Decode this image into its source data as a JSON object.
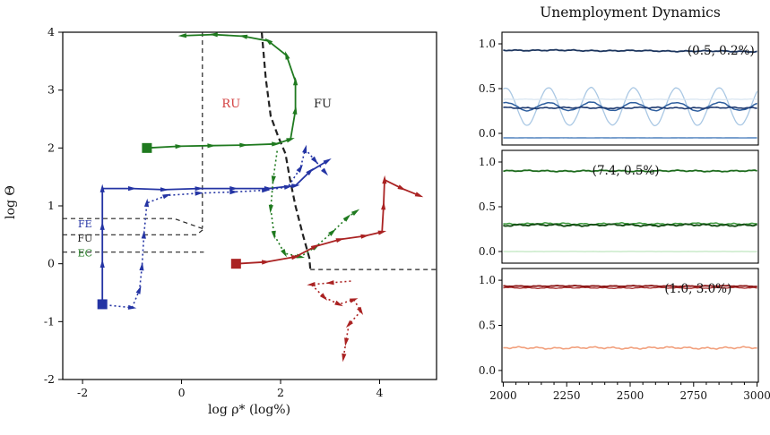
{
  "chart_data": [
    {
      "type": "scatter",
      "kind": "phase-diagram",
      "xlabel": "log ρ* (log%)",
      "ylabel": "log Θ",
      "xlim": [
        -2.4,
        5.15
      ],
      "ylim": [
        -2,
        4
      ],
      "xticks": [
        -2,
        0,
        2,
        4
      ],
      "yticks": [
        -2,
        -1,
        0,
        1,
        2,
        3,
        4
      ],
      "region_labels": [
        {
          "text": "RU",
          "x": 1.0,
          "y": 2.7,
          "color": "#d23a3a"
        },
        {
          "text": "FU",
          "x": 2.85,
          "y": 2.7,
          "color": "#222222"
        }
      ],
      "zone_labels": [
        {
          "text": "FE",
          "x": -1.95,
          "y": 0.63,
          "color": "#2434a4"
        },
        {
          "text": "FU",
          "x": -1.95,
          "y": 0.38,
          "color": "#222222"
        },
        {
          "text": "EC",
          "x": -1.95,
          "y": 0.13,
          "color": "#1f7a1f"
        }
      ],
      "boundaries": [
        {
          "points": [
            [
              1.62,
              4.0
            ],
            [
              1.7,
              3.2
            ],
            [
              1.8,
              2.55
            ],
            [
              1.95,
              2.2
            ],
            [
              2.1,
              1.9
            ],
            [
              2.18,
              1.5
            ],
            [
              2.3,
              1.0
            ],
            [
              2.45,
              0.5
            ],
            [
              2.58,
              0.1
            ],
            [
              2.6,
              -0.1
            ]
          ],
          "width": 2.2,
          "dash": "7 4"
        },
        {
          "points": [
            [
              2.6,
              -0.1
            ],
            [
              5.15,
              -0.1
            ]
          ],
          "width": 1.2,
          "dash": "5 4"
        },
        {
          "points": [
            [
              0.42,
              4.0
            ],
            [
              0.42,
              0.62
            ]
          ],
          "width": 1.2,
          "dash": "5 4"
        },
        {
          "points": [
            [
              -2.4,
              0.78
            ],
            [
              -0.15,
              0.78
            ],
            [
              0.45,
              0.6
            ]
          ],
          "width": 1.2,
          "dash": "5 4"
        },
        {
          "points": [
            [
              -2.4,
              0.5
            ],
            [
              0.3,
              0.5
            ],
            [
              0.45,
              0.6
            ]
          ],
          "width": 1.2,
          "dash": "5 4"
        },
        {
          "points": [
            [
              -2.4,
              0.2
            ],
            [
              0.45,
              0.2
            ]
          ],
          "width": 1.2,
          "dash": "5 4"
        }
      ],
      "trajectories": [
        {
          "name": "blue-solid",
          "color": "#2434a4",
          "style": "solid",
          "width": 1.8,
          "start_square": true,
          "points": [
            [
              -1.6,
              -0.7
            ],
            [
              -1.6,
              0.0
            ],
            [
              -1.6,
              0.65
            ],
            [
              -1.6,
              1.3
            ],
            [
              -1.0,
              1.3
            ],
            [
              -0.35,
              1.28
            ],
            [
              0.35,
              1.3
            ],
            [
              1.05,
              1.3
            ],
            [
              1.75,
              1.3
            ],
            [
              2.3,
              1.35
            ],
            [
              2.6,
              1.6
            ],
            [
              2.95,
              1.78
            ]
          ]
        },
        {
          "name": "blue-dotted",
          "color": "#2434a4",
          "style": "dotted",
          "width": 1.6,
          "start_square": false,
          "points": [
            [
              -1.45,
              -0.72
            ],
            [
              -1.0,
              -0.76
            ],
            [
              -0.85,
              -0.45
            ],
            [
              -0.8,
              -0.05
            ],
            [
              -0.76,
              0.5
            ],
            [
              -0.7,
              1.05
            ],
            [
              -0.3,
              1.18
            ],
            [
              0.35,
              1.22
            ],
            [
              1.05,
              1.24
            ],
            [
              1.7,
              1.27
            ],
            [
              2.15,
              1.33
            ],
            [
              2.4,
              1.65
            ],
            [
              2.5,
              1.98
            ],
            [
              2.7,
              1.78
            ],
            [
              2.9,
              1.58
            ]
          ]
        },
        {
          "name": "green-solid",
          "color": "#1f7a1f",
          "style": "solid",
          "width": 1.8,
          "start_square": true,
          "points": [
            [
              -0.7,
              2.0
            ],
            [
              -0.05,
              2.03
            ],
            [
              0.6,
              2.04
            ],
            [
              1.25,
              2.05
            ],
            [
              1.9,
              2.07
            ],
            [
              2.2,
              2.15
            ],
            [
              2.3,
              2.65
            ],
            [
              2.3,
              3.15
            ],
            [
              2.12,
              3.6
            ],
            [
              1.75,
              3.85
            ],
            [
              1.25,
              3.93
            ],
            [
              0.65,
              3.96
            ],
            [
              0.02,
              3.94
            ]
          ]
        },
        {
          "name": "green-dotted",
          "color": "#1f7a1f",
          "style": "dotted",
          "width": 1.6,
          "start_square": false,
          "points": [
            [
              1.93,
              1.95
            ],
            [
              1.85,
              1.45
            ],
            [
              1.8,
              0.95
            ],
            [
              1.87,
              0.5
            ],
            [
              2.08,
              0.18
            ],
            [
              2.4,
              0.12
            ],
            [
              2.72,
              0.3
            ],
            [
              3.05,
              0.55
            ],
            [
              3.35,
              0.8
            ],
            [
              3.52,
              0.9
            ]
          ]
        },
        {
          "name": "red-solid",
          "color": "#aa2222",
          "style": "solid",
          "width": 1.8,
          "start_square": true,
          "points": [
            [
              1.1,
              0.0
            ],
            [
              1.7,
              0.03
            ],
            [
              2.3,
              0.12
            ],
            [
              2.7,
              0.3
            ],
            [
              3.2,
              0.42
            ],
            [
              3.7,
              0.48
            ],
            [
              4.05,
              0.55
            ],
            [
              4.08,
              1.0
            ],
            [
              4.1,
              1.45
            ],
            [
              4.45,
              1.3
            ],
            [
              4.8,
              1.18
            ]
          ]
        },
        {
          "name": "red-dotted",
          "color": "#aa2222",
          "style": "dotted",
          "width": 1.6,
          "start_square": false,
          "points": [
            [
              3.42,
              -0.3
            ],
            [
              3.0,
              -0.33
            ],
            [
              2.62,
              -0.36
            ],
            [
              2.88,
              -0.58
            ],
            [
              3.18,
              -0.7
            ],
            [
              3.48,
              -0.62
            ],
            [
              3.62,
              -0.82
            ],
            [
              3.38,
              -1.05
            ],
            [
              3.32,
              -1.35
            ],
            [
              3.27,
              -1.62
            ]
          ]
        }
      ]
    },
    {
      "type": "line",
      "kind": "dynamics",
      "title": "Unemployment Dynamics",
      "x_range": [
        2000,
        3000
      ],
      "xticks": [
        2000,
        2250,
        2500,
        2750,
        3000
      ],
      "yticks": [
        0.0,
        0.5,
        1.0
      ],
      "ylim": [
        -0.13,
        1.13
      ],
      "panels": [
        {
          "label": "(0.5, 0.2%)",
          "label_x": 2990,
          "label_y": 0.88,
          "series": [
            {
              "type": "sine",
              "mean": 0.3,
              "amp": 0.21,
              "period": 168,
              "phase": 1.2,
              "noise": 0.005,
              "color": "#aac8e4",
              "width": 1.3
            },
            {
              "type": "flat",
              "mean": 0.38,
              "noise": 0.003,
              "color": "#d6e4f0",
              "width": 1.2
            },
            {
              "type": "sine",
              "mean": 0.3,
              "amp": 0.045,
              "period": 168,
              "phase": 1.2,
              "noise": 0.006,
              "color": "#2e5e9e",
              "width": 1.5
            },
            {
              "type": "flat",
              "mean": 0.285,
              "noise": 0.008,
              "color": "#1f3a70",
              "width": 1.6
            },
            {
              "type": "flat",
              "mean": 0.93,
              "drift": -0.015,
              "noise": 0.007,
              "color": "#1c355e",
              "width": 1.8
            },
            {
              "type": "flat",
              "mean": -0.05,
              "noise": 0.001,
              "color": "#4f81bd",
              "width": 1.4
            }
          ]
        },
        {
          "label": "(7.4, 0.5%)",
          "label_x": 2615,
          "label_y": 0.86,
          "series": [
            {
              "type": "flat",
              "mean": 0.0,
              "noise": 0.001,
              "color": "#bfe6bf",
              "width": 1.3
            },
            {
              "type": "flat",
              "mean": 0.31,
              "noise": 0.01,
              "color": "#3f9a3f",
              "width": 1.5
            },
            {
              "type": "flat",
              "mean": 0.295,
              "noise": 0.012,
              "color": "#144d14",
              "width": 1.9
            },
            {
              "type": "flat",
              "mean": 0.9,
              "noise": 0.008,
              "color": "#1d6b1d",
              "width": 1.8
            }
          ]
        },
        {
          "label": "(1.0, 3.0%)",
          "label_x": 2900,
          "label_y": 0.86,
          "series": [
            {
              "type": "flat",
              "mean": 0.25,
              "noise": 0.012,
              "color": "#f2a17e",
              "width": 1.6
            },
            {
              "type": "flat",
              "mean": 0.915,
              "noise": 0.006,
              "color": "#a83232",
              "width": 1.3
            },
            {
              "type": "flat",
              "mean": 0.935,
              "noise": 0.005,
              "color": "#8c1616",
              "width": 1.9
            }
          ]
        }
      ]
    }
  ]
}
